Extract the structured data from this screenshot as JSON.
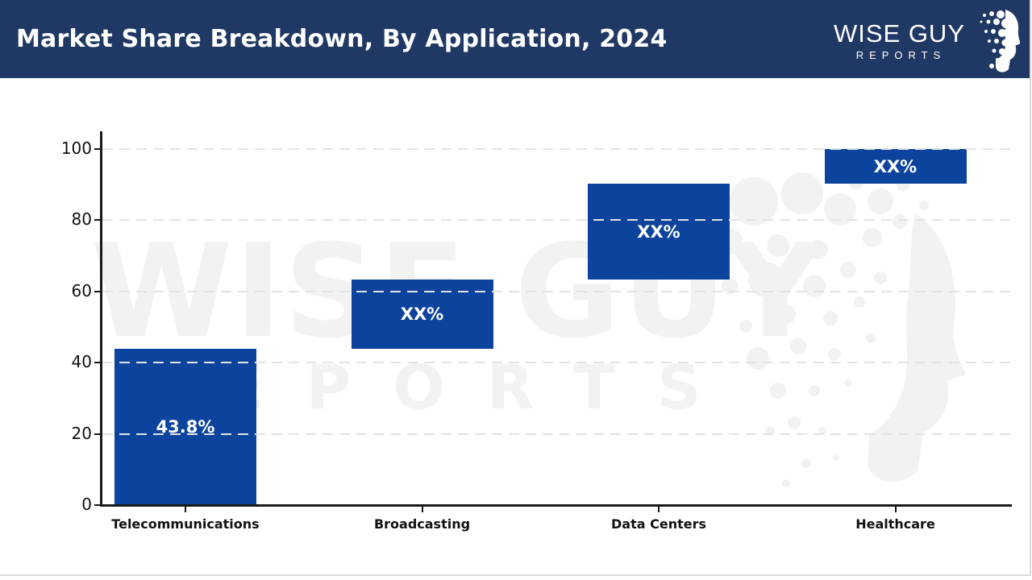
{
  "header": {
    "title": "Market Share Breakdown, By Application, 2024",
    "logo": {
      "line1": "WISE GUY",
      "line2": "REPORTS"
    }
  },
  "watermark": {
    "line1": "WISE GUY",
    "line2": "REPORTS"
  },
  "colors": {
    "header_bg": "#1f3864",
    "bar": "#0c449d",
    "grid": "#e3e3e3",
    "axis": "#1a1a1a",
    "watermark": "#f2f2f2",
    "title_text": "#ffffff",
    "bar_label_text": "#ffffff"
  },
  "chart_data": {
    "type": "bar",
    "subtype": "waterfall",
    "title": "Market Share Breakdown, By Application, 2024",
    "xlabel": "",
    "ylabel": "",
    "categories": [
      "Telecommunications",
      "Broadcasting",
      "Data Centers",
      "Healthcare"
    ],
    "segments": [
      {
        "category": "Telecommunications",
        "start": 0,
        "end": 43.8,
        "label": "43.8%"
      },
      {
        "category": "Broadcasting",
        "start": 43.8,
        "end": 63.4,
        "label": "XX%"
      },
      {
        "category": "Data Centers",
        "start": 63.4,
        "end": 90.2,
        "label": "XX%"
      },
      {
        "category": "Healthcare",
        "start": 90.2,
        "end": 100,
        "label": "XX%"
      }
    ],
    "yticks": [
      0,
      20,
      40,
      60,
      80,
      100
    ],
    "ylim": [
      0,
      105
    ],
    "grid": true,
    "grid_style": "dashed",
    "grid_above_bars": true,
    "legend": "none"
  }
}
